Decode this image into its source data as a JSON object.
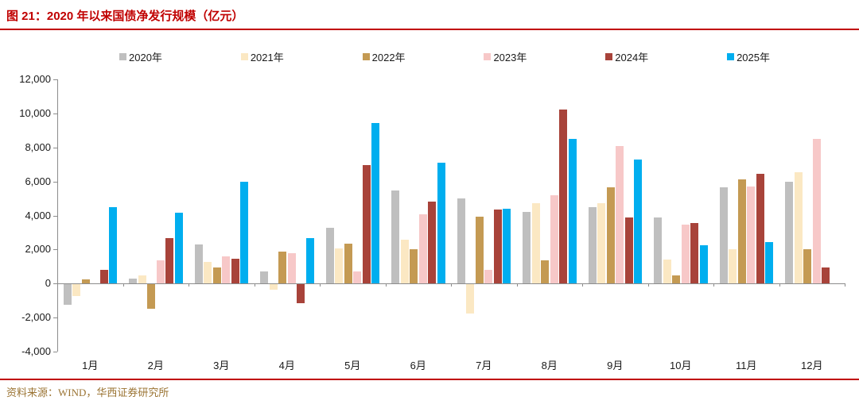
{
  "title": "图 21：2020 年以来国债净发行规模（亿元）",
  "footer": {
    "source": "资料来源：WIND，华西证券研究所"
  },
  "colors": {
    "title": "#C00000",
    "rule": "#C00000",
    "source_text": "#9B7433",
    "axis": "#8c8c8c",
    "text": "#1a1a1a"
  },
  "chart_data": {
    "type": "bar",
    "title": "2020 年以来国债净发行规模（亿元）",
    "categories": [
      "1月",
      "2月",
      "3月",
      "4月",
      "5月",
      "6月",
      "7月",
      "8月",
      "9月",
      "10月",
      "11月",
      "12月"
    ],
    "series": [
      {
        "name": "2020年",
        "color": "#BFBFBF",
        "values": [
          -1200,
          300,
          2300,
          700,
          3300,
          5450,
          5000,
          4200,
          4500,
          3900,
          5650,
          6000
        ]
      },
      {
        "name": "2021年",
        "color": "#FBE8C3",
        "values": [
          -700,
          500,
          1250,
          -300,
          2050,
          2600,
          -1700,
          4700,
          4700,
          1400,
          2000,
          6550
        ]
      },
      {
        "name": "2022年",
        "color": "#C49A53",
        "values": [
          250,
          -1450,
          950,
          1900,
          2350,
          2000,
          3950,
          1350,
          5650,
          500,
          6100,
          2000
        ]
      },
      {
        "name": "2023年",
        "color": "#F7C8C8",
        "values": [
          0,
          1350,
          1600,
          1800,
          700,
          4050,
          800,
          5200,
          8100,
          3450,
          5700,
          8500
        ]
      },
      {
        "name": "2024年",
        "color": "#A8433A",
        "values": [
          800,
          2650,
          1450,
          -1100,
          6950,
          4800,
          4350,
          10250,
          3900,
          3550,
          6450,
          950
        ]
      },
      {
        "name": "2025年",
        "color": "#00AEEF",
        "values": [
          4500,
          4150,
          6000,
          2650,
          9450,
          7100,
          4400,
          8500,
          7300,
          2250,
          2450,
          null
        ]
      }
    ],
    "ylim": [
      -4000,
      12000
    ],
    "ytick_step": 2000,
    "ytick_labels": [
      "12,000",
      "10,000",
      "8,000",
      "6,000",
      "4,000",
      "2,000",
      "0",
      "-2,000",
      "-4,000"
    ],
    "grid": false,
    "legend_position": "top",
    "xlabel": "",
    "ylabel": ""
  }
}
